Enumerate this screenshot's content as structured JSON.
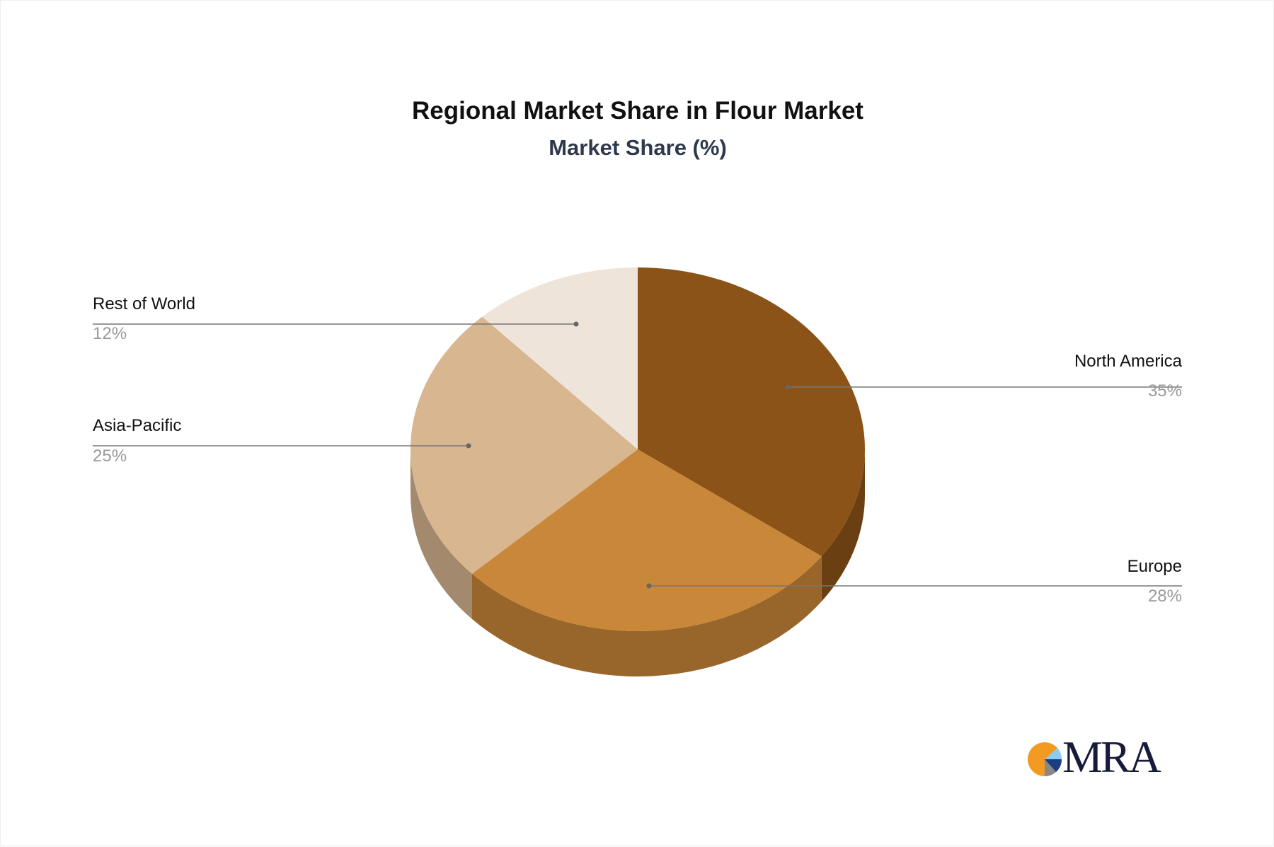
{
  "chart_data": {
    "type": "pie",
    "style": "3d",
    "title": "Regional Market Share in Flour Market",
    "subtitle": "Market Share (%)",
    "categories": [
      "North America",
      "Europe",
      "Asia-Pacific",
      "Rest of World"
    ],
    "values": [
      35,
      28,
      25,
      12
    ],
    "value_labels": [
      "35%",
      "28%",
      "25%",
      "12%"
    ],
    "colors": [
      "#8B5318",
      "#C9873A",
      "#D8B690",
      "#EEE4DA"
    ],
    "side_colors": [
      "#6A3F12",
      "#98652A",
      "#A38A6E",
      "#B5ADA5"
    ],
    "legend": "callout-labels"
  },
  "logo": {
    "text": "MRA"
  }
}
